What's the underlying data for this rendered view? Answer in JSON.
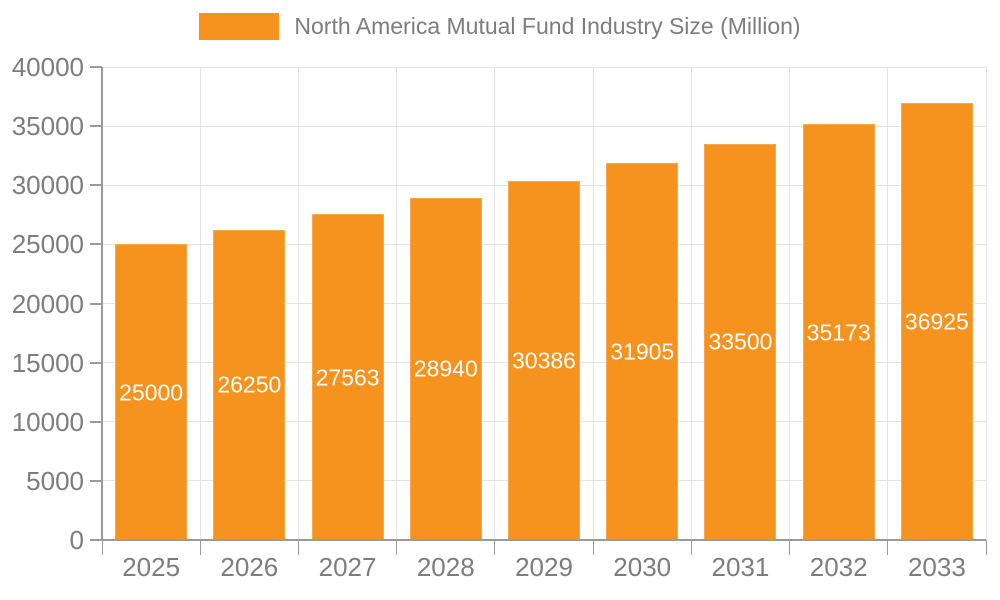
{
  "chart_data": {
    "type": "bar",
    "title": "North America Mutual Fund Industry Size (Million)",
    "categories": [
      "2025",
      "2026",
      "2027",
      "2028",
      "2029",
      "2030",
      "2031",
      "2032",
      "2033"
    ],
    "values": [
      25000,
      26250,
      27563,
      28940,
      30386,
      31905,
      33500,
      35173,
      36925
    ],
    "bar_labels": [
      "25000",
      "26250",
      "27563",
      "28940",
      "30386",
      "31905",
      "33500",
      "35173",
      "36925"
    ],
    "xlabel": "",
    "ylabel": "",
    "ylim": [
      0,
      40000
    ],
    "yticks": [
      0,
      5000,
      10000,
      15000,
      20000,
      25000,
      30000,
      35000,
      40000
    ],
    "ytick_labels": [
      "0",
      "5000",
      "10000",
      "15000",
      "20000",
      "25000",
      "30000",
      "35000",
      "40000"
    ],
    "grid": true,
    "legend_position": "top-center",
    "bar_label_position": "inside-center",
    "colors": {
      "bar": "#F6921E",
      "bar_edge": "#F8A74D",
      "bar_label": "#FFFFFF",
      "axis_text": "#7D7D7D",
      "axis_line": "#9A9A9A",
      "gridline": "#E4E4E4",
      "legend_text": "#7D7D7D",
      "background": "#FFFFFF"
    }
  }
}
